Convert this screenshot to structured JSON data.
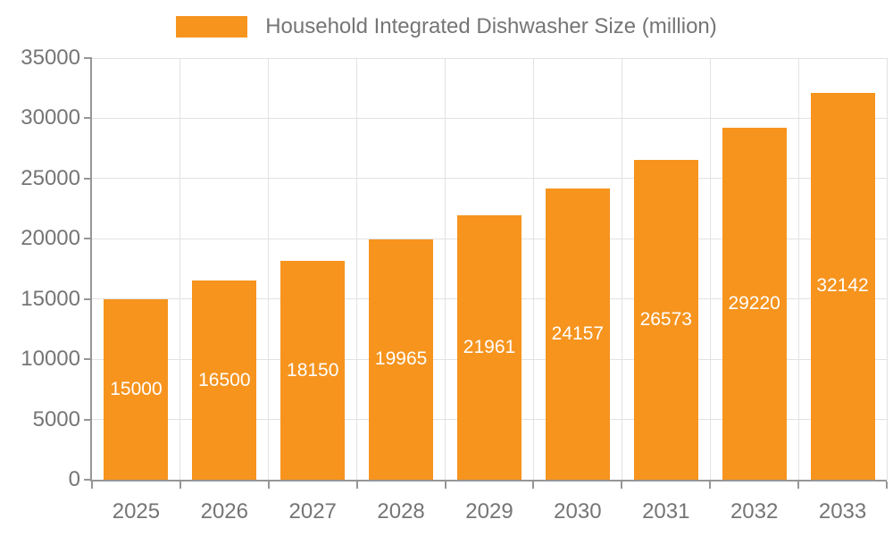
{
  "chart_data": {
    "type": "bar",
    "title": "Household Integrated Dishwasher Size (million)",
    "categories": [
      "2025",
      "2026",
      "2027",
      "2028",
      "2029",
      "2030",
      "2031",
      "2032",
      "2033"
    ],
    "values": [
      15000,
      16500,
      18150,
      19965,
      21961,
      24157,
      26573,
      29220,
      32142
    ],
    "xlabel": "",
    "ylabel": "",
    "ylim": [
      0,
      35000
    ],
    "yticks": [
      0,
      5000,
      10000,
      15000,
      20000,
      25000,
      30000,
      35000
    ],
    "grid": true,
    "legend_position": "top",
    "bar_label_position": "inside-center",
    "colors": {
      "bar": "#F6941E",
      "bar_label": "#FFFFFF",
      "axis_line": "#969696",
      "grid_line": "#E2E2E2",
      "tick_label": "#757575",
      "legend_text": "#757575",
      "background": "#FFFFFF"
    }
  }
}
